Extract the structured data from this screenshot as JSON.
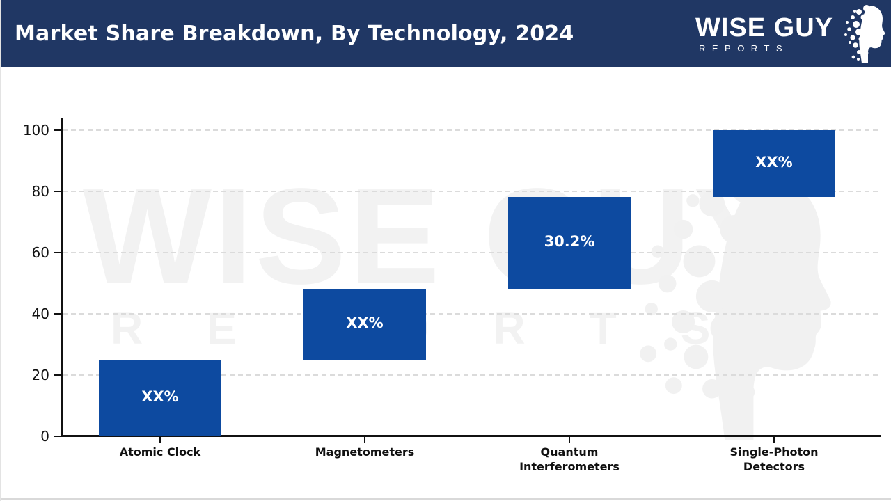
{
  "header": {
    "title": "Market Share Breakdown, By Technology, 2024",
    "logo_primary": "WISE GUY",
    "logo_secondary": "REPORTS",
    "background_color": "#203764"
  },
  "watermark": {
    "primary": "WISE GUY",
    "secondary": "REPORTS"
  },
  "chart_data": {
    "type": "bar",
    "variant": "waterfall",
    "title": "Market Share Breakdown, By Technology, 2024",
    "categories": [
      "Atomic Clock",
      "Magnetometers",
      "Quantum Interferometers",
      "Single-Photon Detectors"
    ],
    "bars": [
      {
        "category": "Atomic Clock",
        "start": 0,
        "end": 25,
        "height": 25,
        "value_label": "XX%"
      },
      {
        "category": "Magnetometers",
        "start": 25,
        "end": 48,
        "height": 23,
        "value_label": "XX%"
      },
      {
        "category": "Quantum Interferometers",
        "start": 48,
        "end": 78.2,
        "height": 30.2,
        "value_label": "30.2%"
      },
      {
        "category": "Single-Photon Detectors",
        "start": 78.2,
        "end": 100,
        "height": 21.8,
        "value_label": "XX%"
      }
    ],
    "xlabel": "",
    "ylabel": "",
    "ylim": [
      0,
      100
    ],
    "y_ticks": [
      0,
      20,
      40,
      60,
      80,
      100
    ],
    "grid": "horizontal-dashed",
    "legend": "none",
    "colors": {
      "bar": "#0d4aa0",
      "value_label": "#ffffff",
      "grid": "#dbdbdb",
      "axis": "#111111",
      "watermark": "#f2f2f2",
      "header_bg": "#203764"
    }
  }
}
